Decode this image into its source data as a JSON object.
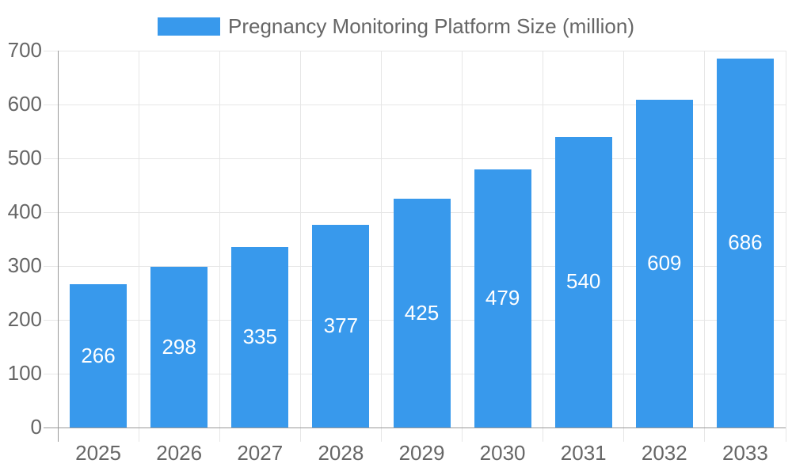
{
  "chart_data": {
    "type": "bar",
    "title": "Pregnancy Monitoring Platform Size (million)",
    "categories": [
      "2025",
      "2026",
      "2027",
      "2028",
      "2029",
      "2030",
      "2031",
      "2032",
      "2033"
    ],
    "values": [
      266,
      298,
      335,
      377,
      425,
      479,
      540,
      609,
      686
    ],
    "series": [
      {
        "name": "Pregnancy Monitoring Platform Size (million)",
        "values": [
          266,
          298,
          335,
          377,
          425,
          479,
          540,
          609,
          686
        ]
      }
    ],
    "xlabel": "",
    "ylabel": "",
    "ylim": [
      0,
      700
    ],
    "yticks": [
      0,
      100,
      200,
      300,
      400,
      500,
      600,
      700
    ],
    "grid": true,
    "legend_position": "top",
    "value_label_position": "inside-center"
  },
  "colors": {
    "bar": "#3899EC",
    "grid": "#E6E6E6",
    "axis": "#999999",
    "tick_text": "#666666",
    "value_text": "#FFFFFF",
    "background": "#FFFFFF"
  }
}
